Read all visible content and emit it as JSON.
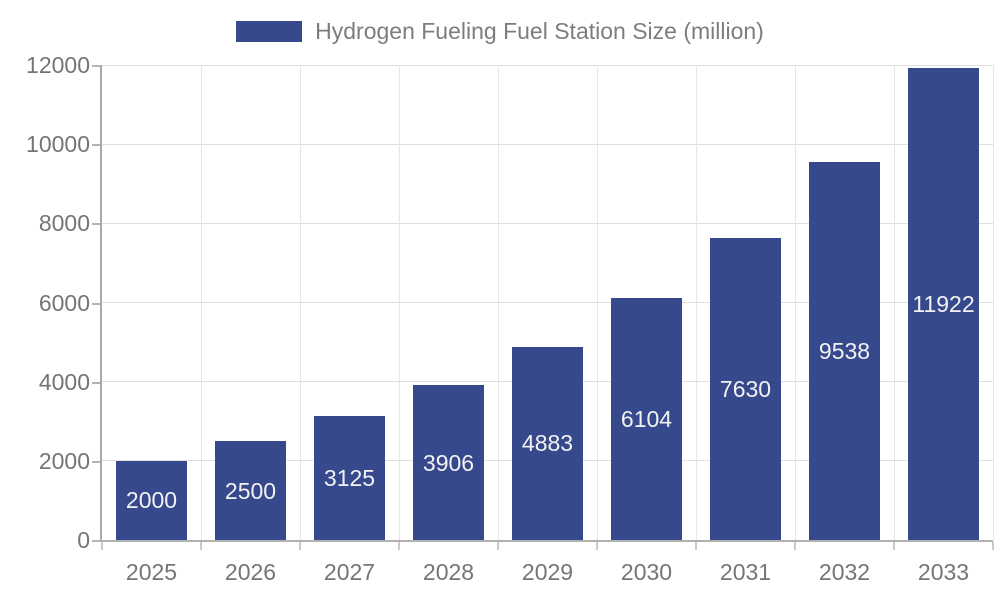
{
  "legend": {
    "position": "top-center",
    "items": [
      {
        "label": "Hydrogen Fueling Fuel Station Size (million)"
      }
    ]
  },
  "chart_data": {
    "type": "bar",
    "title": "",
    "xlabel": "",
    "ylabel": "",
    "categories": [
      "2025",
      "2026",
      "2027",
      "2028",
      "2029",
      "2030",
      "2031",
      "2032",
      "2033"
    ],
    "series": [
      {
        "name": "Hydrogen Fueling Fuel Station Size (million)",
        "values": [
          2000,
          2500,
          3125,
          3906,
          4883,
          6104,
          7630,
          9538,
          11922
        ]
      }
    ],
    "value_labels_shown": true,
    "ylim": [
      0,
      12000
    ],
    "yticks": [
      0,
      2000,
      4000,
      6000,
      8000,
      10000,
      12000
    ],
    "grid": true,
    "legend_position": "top-center",
    "colors": {
      "bar": "#36498C",
      "value_label": "#F2F2F2",
      "axis_label": "#757575",
      "legend_text": "#7D7D7D",
      "gridline": "#E0E0E0",
      "axis_line": "#A8A8A8"
    }
  }
}
